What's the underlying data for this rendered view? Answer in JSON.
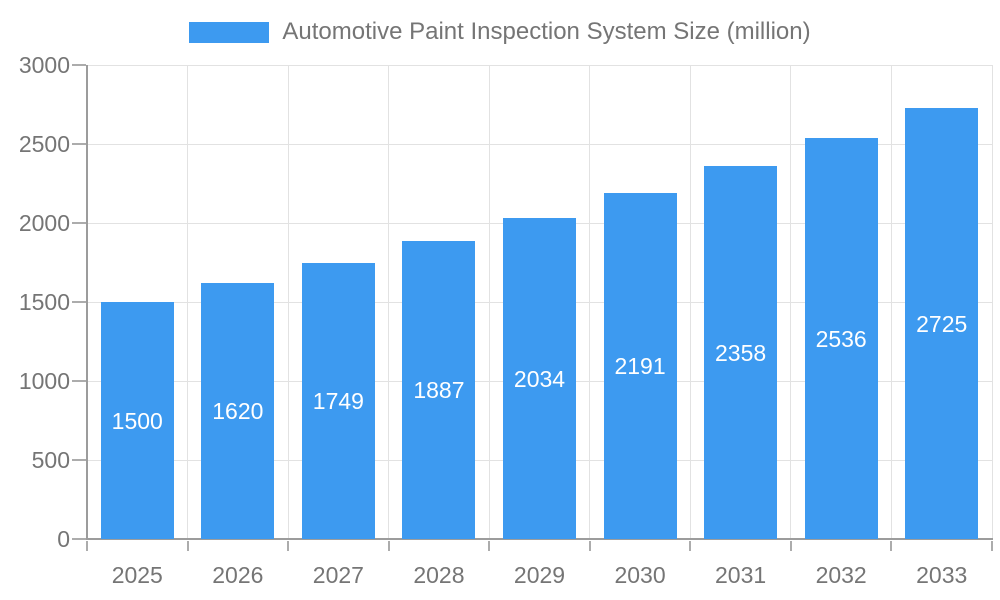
{
  "chart_data": {
    "type": "bar",
    "title": "Automotive Paint Inspection System Size (million)",
    "categories": [
      "2025",
      "2026",
      "2027",
      "2028",
      "2029",
      "2030",
      "2031",
      "2032",
      "2033"
    ],
    "values": [
      1500,
      1620,
      1749,
      1887,
      2034,
      2191,
      2358,
      2536,
      2725
    ],
    "xlabel": "",
    "ylabel": "",
    "ylim": [
      0,
      3000
    ],
    "yticks": [
      0,
      500,
      1000,
      1500,
      2000,
      2500,
      3000
    ],
    "grid": true,
    "legend_position": "top",
    "value_labels": "inside-bar-center",
    "colors": {
      "bar": "#3D9AF0",
      "axis_text": "#757575",
      "legend_text": "#757575",
      "value_label_text": "#FFFFFF",
      "gridline": "#E2E2E2",
      "axis_line": "#9C9C9C",
      "tick": "#ACACAC",
      "background": "#FFFFFF"
    }
  }
}
